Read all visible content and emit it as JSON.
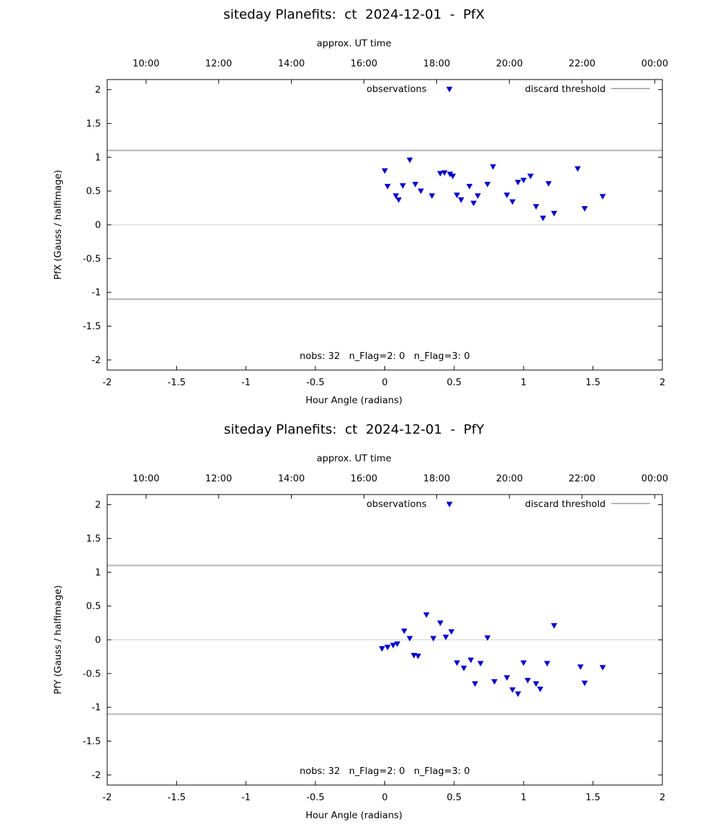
{
  "chart_data": [
    {
      "type": "scatter",
      "title": "siteday Planefits:  ct  2024-12-01  -  PfX",
      "x2label": "approx. UT time",
      "xlabel": "Hour Angle (radians)",
      "ylabel": "PfX (Gauss / halfimage)",
      "annotation": "nobs: 32   n_Flag=2: 0   n_Flag=3: 0",
      "legend": {
        "observations_label": "observations",
        "threshold_label": "discard threshold"
      },
      "marker": "triangle-down",
      "marker_color": "#0000cc",
      "threshold_color": "#b3b3b3",
      "zero_line_color": "#cccccc",
      "xlim": [
        -2,
        2
      ],
      "ylim": [
        -2.15,
        2.15
      ],
      "xticks": [
        -2,
        -1.5,
        -1,
        -0.5,
        0,
        0.5,
        1,
        1.5,
        2
      ],
      "yticks": [
        -2,
        -1.5,
        -1,
        -0.5,
        0,
        0.5,
        1,
        1.5,
        2
      ],
      "x2ticks": [
        {
          "label": "10:00",
          "x": -1.72
        },
        {
          "label": "12:00",
          "x": -1.197
        },
        {
          "label": "14:00",
          "x": -0.673
        },
        {
          "label": "16:00",
          "x": -0.15
        },
        {
          "label": "18:00",
          "x": 0.374
        },
        {
          "label": "20:00",
          "x": 0.898
        },
        {
          "label": "22:00",
          "x": 1.421
        },
        {
          "label": "00:00",
          "x": 1.945
        }
      ],
      "thresholds": [
        1.1,
        -1.1
      ],
      "zero_line": 0,
      "points": [
        [
          0.0,
          0.8
        ],
        [
          0.02,
          0.57
        ],
        [
          0.08,
          0.43
        ],
        [
          0.1,
          0.37
        ],
        [
          0.13,
          0.58
        ],
        [
          0.18,
          0.96
        ],
        [
          0.22,
          0.6
        ],
        [
          0.26,
          0.5
        ],
        [
          0.34,
          0.43
        ],
        [
          0.4,
          0.76
        ],
        [
          0.43,
          0.77
        ],
        [
          0.47,
          0.75
        ],
        [
          0.49,
          0.72
        ],
        [
          0.52,
          0.44
        ],
        [
          0.55,
          0.37
        ],
        [
          0.61,
          0.57
        ],
        [
          0.64,
          0.32
        ],
        [
          0.67,
          0.43
        ],
        [
          0.74,
          0.6
        ],
        [
          0.78,
          0.86
        ],
        [
          0.88,
          0.44
        ],
        [
          0.92,
          0.34
        ],
        [
          0.96,
          0.63
        ],
        [
          1.0,
          0.66
        ],
        [
          1.05,
          0.72
        ],
        [
          1.09,
          0.27
        ],
        [
          1.14,
          0.1
        ],
        [
          1.18,
          0.61
        ],
        [
          1.22,
          0.17
        ],
        [
          1.39,
          0.83
        ],
        [
          1.44,
          0.24
        ],
        [
          1.57,
          0.42
        ]
      ]
    },
    {
      "type": "scatter",
      "title": "siteday Planefits:  ct  2024-12-01  -  PfY",
      "x2label": "approx. UT time",
      "xlabel": "Hour Angle (radians)",
      "ylabel": "PfY (Gauss / halfimage)",
      "annotation": "nobs: 32   n_Flag=2: 0   n_Flag=3: 0",
      "legend": {
        "observations_label": "observations",
        "threshold_label": "discard threshold"
      },
      "marker": "triangle-down",
      "marker_color": "#0000cc",
      "threshold_color": "#b3b3b3",
      "zero_line_color": "#cccccc",
      "xlim": [
        -2,
        2
      ],
      "ylim": [
        -2.15,
        2.15
      ],
      "xticks": [
        -2,
        -1.5,
        -1,
        -0.5,
        0,
        0.5,
        1,
        1.5,
        2
      ],
      "yticks": [
        -2,
        -1.5,
        -1,
        -0.5,
        0,
        0.5,
        1,
        1.5,
        2
      ],
      "x2ticks": [
        {
          "label": "10:00",
          "x": -1.72
        },
        {
          "label": "12:00",
          "x": -1.197
        },
        {
          "label": "14:00",
          "x": -0.673
        },
        {
          "label": "16:00",
          "x": -0.15
        },
        {
          "label": "18:00",
          "x": 0.374
        },
        {
          "label": "20:00",
          "x": 0.898
        },
        {
          "label": "22:00",
          "x": 1.421
        },
        {
          "label": "00:00",
          "x": 1.945
        }
      ],
      "thresholds": [
        1.1,
        -1.1
      ],
      "zero_line": 0,
      "points": [
        [
          -0.02,
          -0.13
        ],
        [
          0.02,
          -0.11
        ],
        [
          0.06,
          -0.08
        ],
        [
          0.09,
          -0.06
        ],
        [
          0.14,
          0.13
        ],
        [
          0.18,
          0.02
        ],
        [
          0.21,
          -0.23
        ],
        [
          0.24,
          -0.24
        ],
        [
          0.3,
          0.37
        ],
        [
          0.35,
          0.02
        ],
        [
          0.4,
          0.25
        ],
        [
          0.44,
          0.04
        ],
        [
          0.48,
          0.12
        ],
        [
          0.52,
          -0.34
        ],
        [
          0.57,
          -0.42
        ],
        [
          0.62,
          -0.3
        ],
        [
          0.65,
          -0.65
        ],
        [
          0.69,
          -0.35
        ],
        [
          0.74,
          0.03
        ],
        [
          0.79,
          -0.62
        ],
        [
          0.88,
          -0.56
        ],
        [
          0.92,
          -0.74
        ],
        [
          0.96,
          -0.8
        ],
        [
          1.0,
          -0.34
        ],
        [
          1.03,
          -0.6
        ],
        [
          1.09,
          -0.65
        ],
        [
          1.12,
          -0.73
        ],
        [
          1.17,
          -0.35
        ],
        [
          1.22,
          0.21
        ],
        [
          1.41,
          -0.4
        ],
        [
          1.44,
          -0.64
        ],
        [
          1.57,
          -0.41
        ]
      ]
    }
  ]
}
